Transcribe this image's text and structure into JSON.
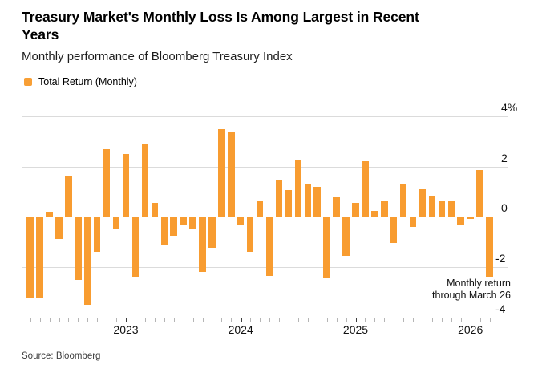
{
  "header": {
    "title_line1": "Treasury Market's Monthly Loss Is Among Largest in Recent",
    "title_line2": "Years",
    "title_full": "Treasury Market's Monthly Loss Is Among Largest in Recent Years",
    "subtitle": "Monthly performance of Bloomberg Treasury Index"
  },
  "legend": {
    "items": [
      {
        "label": "Total Return (Monthly)",
        "color": "#F89F35",
        "swatch_icon": "orange-square-swatch"
      }
    ]
  },
  "annotation": {
    "line1": "Monthly return",
    "line2": "through March 26"
  },
  "source": "Source: Bloomberg",
  "colors": {
    "bar": "#F89C30",
    "grid": "#DBDBDB",
    "zero_line": "#2E2E2E",
    "axis": "#A9A9A9",
    "tick_minor": "#B5B5B5",
    "tick_year": "#3C3C3C"
  },
  "chart_data": {
    "type": "bar",
    "title": "Treasury Market's Monthly Loss Is Among Largest in Recent Years",
    "subtitle": "Monthly performance of Bloomberg Treasury Index",
    "unit": "%",
    "ylim": [
      -4,
      4
    ],
    "grid": true,
    "legend_position": "top-left",
    "axis_side": "right",
    "series_name": "Total Return (Monthly)",
    "x": [
      "Mar 2022",
      "Apr 2022",
      "May 2022",
      "Jun 2022",
      "Jul 2022",
      "Aug 2022",
      "Sep 2022",
      "Oct 2022",
      "Nov 2022",
      "Dec 2022",
      "Jan 2023",
      "Feb 2023",
      "Mar 2023",
      "Apr 2023",
      "May 2023",
      "Jun 2023",
      "Jul 2023",
      "Aug 2023",
      "Sep 2023",
      "Oct 2023",
      "Nov 2023",
      "Dec 2023",
      "Jan 2024",
      "Feb 2024",
      "Mar 2024",
      "Apr 2024",
      "May 2024",
      "Jun 2024",
      "Jul 2024",
      "Aug 2024",
      "Sep 2024",
      "Oct 2024",
      "Nov 2024",
      "Dec 2024",
      "Jan 2025",
      "Feb 2025",
      "Mar 2025",
      "Apr 2025",
      "May 2025",
      "Jun 2025",
      "Jul 2025",
      "Aug 2025",
      "Sep 2025",
      "Oct 2025",
      "Nov 2025",
      "Dec 2025",
      "Jan 2026",
      "Feb 2026",
      "Mar 2026"
    ],
    "values": [
      -3.2,
      -3.2,
      0.2,
      -0.9,
      1.6,
      -2.5,
      -3.5,
      -1.4,
      2.7,
      -0.5,
      2.5,
      -2.4,
      2.9,
      0.55,
      -1.15,
      -0.75,
      -0.35,
      -0.5,
      -2.2,
      -1.25,
      3.5,
      3.4,
      -0.3,
      -1.4,
      0.65,
      -2.35,
      1.45,
      1.05,
      2.25,
      1.3,
      1.2,
      -2.45,
      0.8,
      -1.55,
      0.55,
      2.2,
      0.25,
      0.65,
      -1.05,
      1.3,
      -0.4,
      1.1,
      0.85,
      0.65,
      0.65,
      -0.35,
      -0.1,
      1.85,
      -2.4
    ],
    "y_ticks": [
      {
        "label": "4%",
        "value": 4
      },
      {
        "label": "2",
        "value": 2
      },
      {
        "label": "0",
        "value": 0
      },
      {
        "label": "-2",
        "value": -2
      },
      {
        "label": "-4",
        "value": -4
      }
    ],
    "x_year_ticks": [
      {
        "label": "2023",
        "month_index": 10
      },
      {
        "label": "2024",
        "month_index": 22
      },
      {
        "label": "2025",
        "month_index": 34
      },
      {
        "label": "2026",
        "month_index": 46
      }
    ]
  }
}
